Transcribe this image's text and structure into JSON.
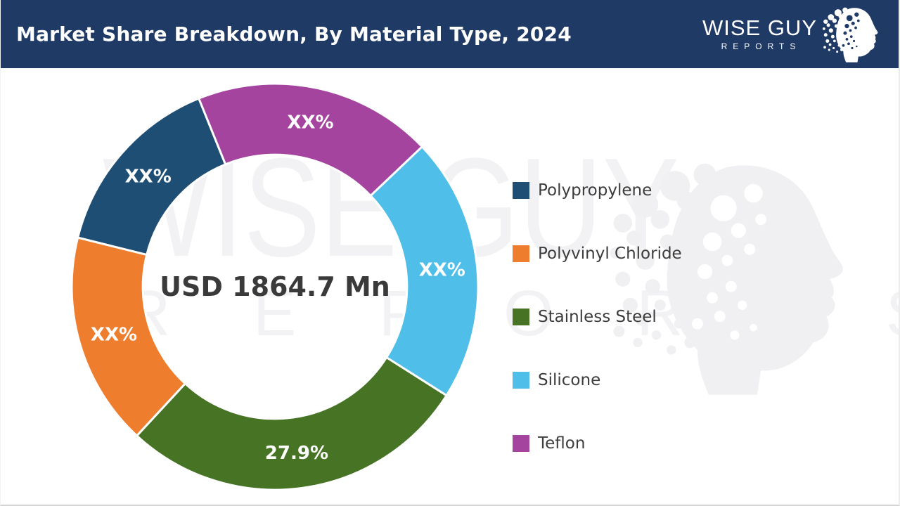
{
  "header": {
    "title": "Market Share Breakdown, By Material Type, 2024",
    "logo": {
      "line1": "WISE GUY",
      "line2": "REPORTS"
    }
  },
  "watermark": {
    "line1": "WISE GUY",
    "line2": "R E P O R T S"
  },
  "chart_data": {
    "type": "pie",
    "subtype": "donut",
    "title": "Market Share Breakdown, By Material Type, 2024",
    "center_label": "USD 1864.7 Mn",
    "start_angle_deg": 112,
    "direction": "counterclockwise",
    "inner_radius_ratio": 0.65,
    "legend_position": "right",
    "note": "All slice labels masked as XX% except Stainless Steel 27.9%; other percentages estimated from arc geometry",
    "series": [
      {
        "name": "Polypropylene",
        "value_pct": 15.0,
        "label": "XX%",
        "color": "#1f4e74"
      },
      {
        "name": "Polyvinyl Chloride",
        "value_pct": 17.0,
        "label": "XX%",
        "color": "#ee7d2e"
      },
      {
        "name": "Stainless Steel",
        "value_pct": 27.9,
        "label": "27.9%",
        "color": "#467424"
      },
      {
        "name": "Silicone",
        "value_pct": 21.1,
        "label": "XX%",
        "color": "#4fbee8"
      },
      {
        "name": "Teflon",
        "value_pct": 19.0,
        "label": "XX%",
        "color": "#a4449e"
      }
    ]
  },
  "colors": {
    "header_bg": "#203a66",
    "title_text": "#ffffff",
    "center_text": "#3a3a3a",
    "legend_text": "#3c3c3c",
    "slice_label_text": "#ffffff",
    "watermark": "#f2f2f4",
    "slice_gap": "#ffffff"
  }
}
